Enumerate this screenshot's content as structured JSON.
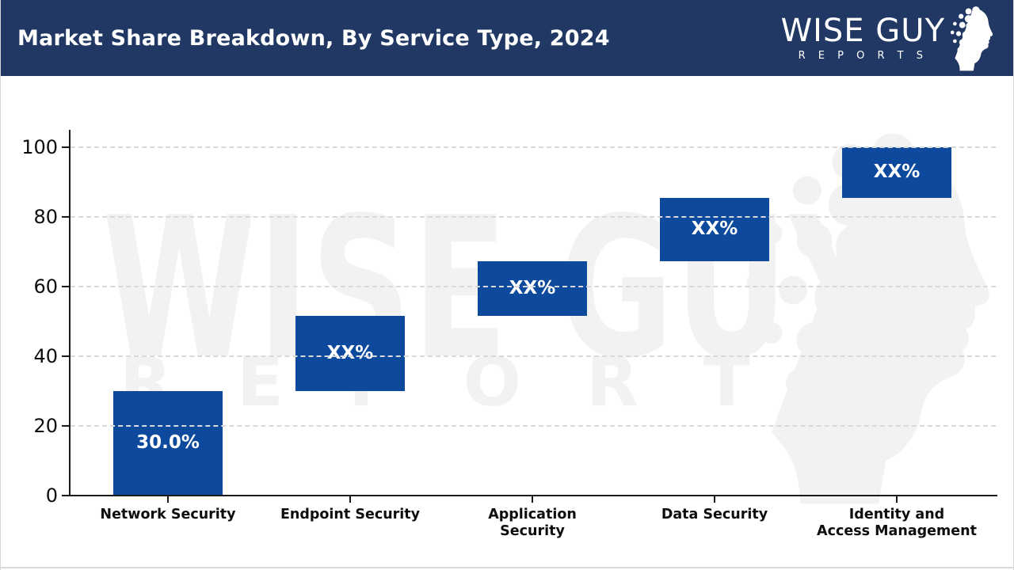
{
  "header": {
    "title": "Market Share Breakdown, By Service Type, 2024",
    "bg_color": "#203863",
    "logo": {
      "name_top": "WISE GUY",
      "name_bottom": "R E P O R T S"
    }
  },
  "watermark": {
    "line1": "WISE GUY",
    "line2": "R E P O R T S"
  },
  "chart_data": {
    "type": "bar",
    "subtype": "floating-waterfall",
    "title": "Market Share Breakdown, By Service Type, 2024",
    "xlabel": "",
    "ylabel": "",
    "categories": [
      "Network Security",
      "Endpoint Security",
      "Application Security",
      "Data Security",
      "Identity and Access Management"
    ],
    "category_lines": [
      [
        "Network Security"
      ],
      [
        "Endpoint Security"
      ],
      [
        "Application",
        "Security"
      ],
      [
        "Data Security"
      ],
      [
        "Identity and",
        "Access Management"
      ]
    ],
    "series": [
      {
        "name": "Market Share",
        "segments": [
          {
            "category": "Network Security",
            "start": 0,
            "end": 30,
            "label": "30.0%"
          },
          {
            "category": "Endpoint Security",
            "start": 30,
            "end": 51.5,
            "label": "XX%"
          },
          {
            "category": "Application Security",
            "start": 51.5,
            "end": 67.3,
            "label": "XX%"
          },
          {
            "category": "Data Security",
            "start": 67.3,
            "end": 85.5,
            "label": "XX%"
          },
          {
            "category": "Identity and Access Management",
            "start": 85.5,
            "end": 100,
            "label": "XX%"
          }
        ]
      }
    ],
    "yticks": [
      0,
      20,
      40,
      60,
      80,
      100
    ],
    "ylim": [
      0,
      105
    ],
    "grid": "horizontal-dashed-over-bars",
    "bar_color": "#0d4a9e",
    "bar_label_color": "#ffffff",
    "axis_color": "#1a1a1a",
    "gridline_color": "#d9d9d9",
    "legend": "none"
  }
}
